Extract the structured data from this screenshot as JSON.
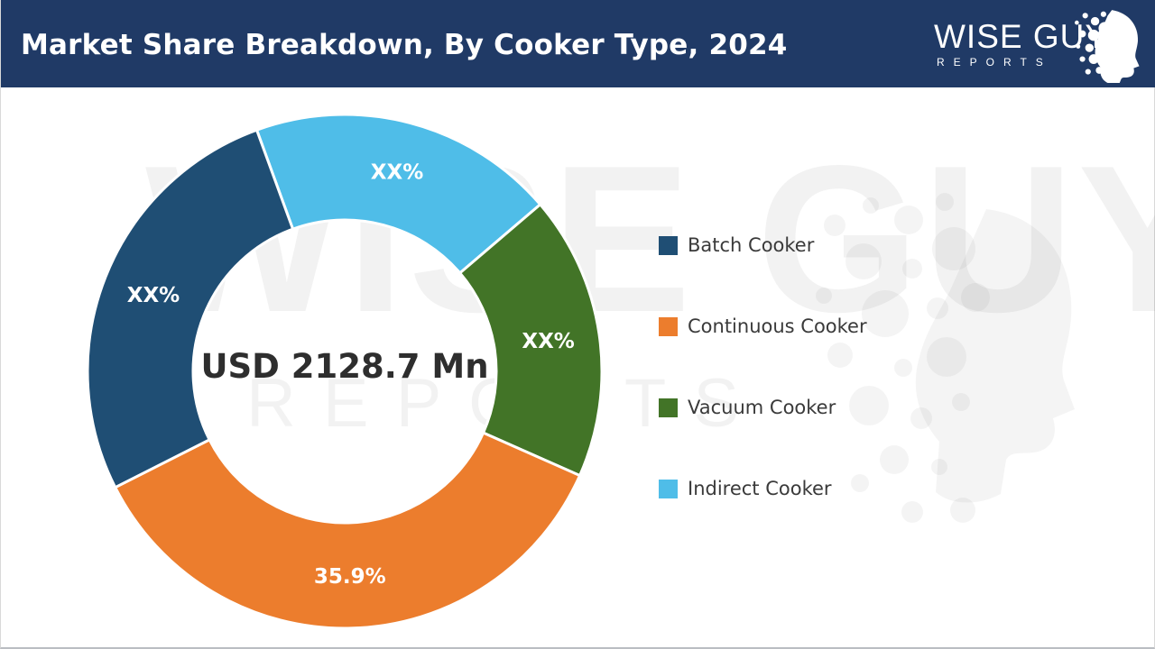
{
  "header": {
    "title": "Market Share Breakdown, By Cooker Type, 2024",
    "logo": {
      "line1": "WISE GUY",
      "line2": "REPORTS"
    }
  },
  "watermark": {
    "line1": "WISE GUY",
    "line2": "REPORTS"
  },
  "chart_data": {
    "type": "pie",
    "subtype": "donut",
    "title": "Market Share Breakdown, By Cooker Type, 2024",
    "center_label": "USD 2128.7 Mn",
    "legend_position": "right",
    "start_angle_deg": 340,
    "clockwise": true,
    "segments": [
      {
        "name": "Batch Cooker",
        "color": "#1F4E74",
        "value_pct": 26.9,
        "data_label": "XX%",
        "draw_order": 3
      },
      {
        "name": "Continuous Cooker",
        "color": "#EC7D2D",
        "value_pct": 35.9,
        "data_label": "35.9%",
        "draw_order": 2
      },
      {
        "name": "Vacuum Cooker",
        "color": "#427427",
        "value_pct": 17.9,
        "data_label": "XX%",
        "draw_order": 1
      },
      {
        "name": "Indirect Cooker",
        "color": "#4FBDE8",
        "value_pct": 19.3,
        "data_label": "XX%",
        "draw_order": 0
      }
    ]
  },
  "colors": {
    "header_bg": "#203A66",
    "page_bg": "#ffffff",
    "legend_text": "#3a3a3a",
    "center_text": "#2e2e2e"
  }
}
